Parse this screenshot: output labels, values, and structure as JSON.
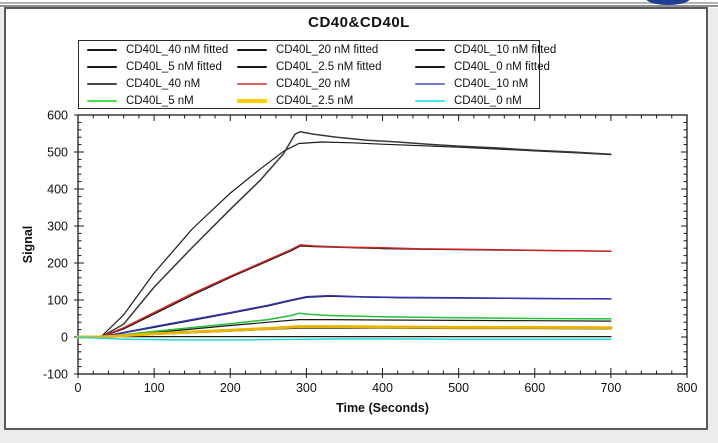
{
  "window": {
    "logo_color": "#1e3f8f"
  },
  "chart_data": {
    "type": "line",
    "title": "CD40&CD40L",
    "xlabel": "Time (Seconds)",
    "ylabel": "Signal",
    "xlim": [
      0,
      800
    ],
    "ylim": [
      -100,
      600
    ],
    "xticks": [
      0,
      100,
      200,
      300,
      400,
      500,
      600,
      700,
      800
    ],
    "yticks": [
      -100,
      0,
      100,
      200,
      300,
      400,
      500,
      600
    ],
    "x_minor_step": 20,
    "y_minor_step": 20,
    "grid": false,
    "legend_position": "top",
    "legend_items": [
      {
        "label": "CD40L_40 nM fitted",
        "color": "#1a1a1a",
        "thick": 2
      },
      {
        "label": "CD40L_20 nM fitted",
        "color": "#1a1a1a",
        "thick": 2
      },
      {
        "label": "CD40L_10 nM fitted",
        "color": "#1a1a1a",
        "thick": 2
      },
      {
        "label": "CD40L_5 nM fitted",
        "color": "#1a1a1a",
        "thick": 2
      },
      {
        "label": "CD40L_2.5 nM fitted",
        "color": "#1a1a1a",
        "thick": 2
      },
      {
        "label": "CD40L_0 nM fitted",
        "color": "#1a1a1a",
        "thick": 2
      },
      {
        "label": "CD40L_40 nM",
        "color": "#474747",
        "thick": 2
      },
      {
        "label": "CD40L_20 nM",
        "color": "#e06060",
        "thick": 2
      },
      {
        "label": "CD40L_10 nM",
        "color": "#7575cc",
        "thick": 2
      },
      {
        "label": "CD40L_5 nM",
        "color": "#44e044",
        "thick": 2
      },
      {
        "label": "CD40L_2.5 nM",
        "color": "#ffcc00",
        "thick": 4
      },
      {
        "label": "CD40L_0 nM",
        "color": "#44e8e8",
        "thick": 2
      }
    ],
    "series": [
      {
        "name": "CD40L_40 nM fitted",
        "color": "#1a1a1a",
        "width": 1.2,
        "points": [
          [
            0,
            0
          ],
          [
            30,
            0
          ],
          [
            60,
            60
          ],
          [
            100,
            173
          ],
          [
            150,
            292
          ],
          [
            200,
            389
          ],
          [
            240,
            455
          ],
          [
            270,
            502
          ],
          [
            290,
            523
          ],
          [
            320,
            527
          ],
          [
            360,
            525
          ],
          [
            400,
            521
          ],
          [
            450,
            517
          ],
          [
            500,
            513
          ],
          [
            550,
            508
          ],
          [
            600,
            503
          ],
          [
            650,
            498
          ],
          [
            700,
            493
          ]
        ]
      },
      {
        "name": "CD40L_20 nM fitted",
        "color": "#1a1a1a",
        "width": 1.2,
        "points": [
          [
            0,
            0
          ],
          [
            30,
            0
          ],
          [
            60,
            22
          ],
          [
            100,
            62
          ],
          [
            150,
            113
          ],
          [
            200,
            161
          ],
          [
            250,
            206
          ],
          [
            280,
            233
          ],
          [
            292,
            246
          ],
          [
            310,
            244
          ],
          [
            350,
            242
          ],
          [
            400,
            239
          ],
          [
            450,
            237
          ],
          [
            500,
            236
          ],
          [
            550,
            235
          ],
          [
            600,
            234
          ],
          [
            650,
            233
          ],
          [
            700,
            232
          ]
        ]
      },
      {
        "name": "CD40L_10 nM fitted",
        "color": "#1a1a1a",
        "width": 1.2,
        "points": [
          [
            0,
            0
          ],
          [
            30,
            0
          ],
          [
            100,
            26
          ],
          [
            150,
            45
          ],
          [
            200,
            64
          ],
          [
            250,
            84
          ],
          [
            280,
            98
          ],
          [
            300,
            107
          ],
          [
            330,
            110
          ],
          [
            370,
            108
          ],
          [
            420,
            106
          ],
          [
            500,
            105
          ],
          [
            600,
            104
          ],
          [
            700,
            103
          ]
        ]
      },
      {
        "name": "CD40L_5 nM fitted",
        "color": "#1a1a1a",
        "width": 1.2,
        "points": [
          [
            0,
            0
          ],
          [
            30,
            0
          ],
          [
            100,
            12
          ],
          [
            200,
            31
          ],
          [
            250,
            40
          ],
          [
            290,
            47
          ],
          [
            330,
            47
          ],
          [
            400,
            46
          ],
          [
            500,
            45
          ],
          [
            600,
            44
          ],
          [
            700,
            43
          ]
        ]
      },
      {
        "name": "CD40L_2.5 nM fitted",
        "color": "#1a1a1a",
        "width": 1.2,
        "points": [
          [
            0,
            0
          ],
          [
            30,
            0
          ],
          [
            100,
            7
          ],
          [
            200,
            16
          ],
          [
            290,
            24
          ],
          [
            400,
            24
          ],
          [
            500,
            23
          ],
          [
            600,
            23
          ],
          [
            700,
            22
          ]
        ]
      },
      {
        "name": "CD40L_0 nM fitted",
        "color": "#1a1a1a",
        "width": 1.2,
        "points": [
          [
            0,
            0
          ],
          [
            30,
            1
          ],
          [
            200,
            1
          ],
          [
            400,
            1
          ],
          [
            700,
            1
          ]
        ]
      },
      {
        "name": "CD40L_40 nM",
        "color": "#383838",
        "width": 1.5,
        "points": [
          [
            0,
            0
          ],
          [
            30,
            0
          ],
          [
            60,
            35
          ],
          [
            100,
            135
          ],
          [
            150,
            242
          ],
          [
            200,
            345
          ],
          [
            240,
            425
          ],
          [
            270,
            495
          ],
          [
            285,
            548
          ],
          [
            292,
            555
          ],
          [
            310,
            548
          ],
          [
            340,
            540
          ],
          [
            380,
            532
          ],
          [
            420,
            527
          ],
          [
            460,
            521
          ],
          [
            500,
            516
          ],
          [
            550,
            511
          ],
          [
            600,
            505
          ],
          [
            650,
            500
          ],
          [
            700,
            494
          ]
        ]
      },
      {
        "name": "CD40L_20 nM",
        "color": "#cc2222",
        "width": 1.5,
        "points": [
          [
            0,
            0
          ],
          [
            30,
            0
          ],
          [
            60,
            25
          ],
          [
            100,
            66
          ],
          [
            150,
            117
          ],
          [
            200,
            164
          ],
          [
            250,
            209
          ],
          [
            280,
            236
          ],
          [
            292,
            249
          ],
          [
            310,
            246
          ],
          [
            350,
            243
          ],
          [
            400,
            241
          ],
          [
            450,
            238
          ],
          [
            500,
            237
          ],
          [
            550,
            236
          ],
          [
            600,
            234
          ],
          [
            650,
            233
          ],
          [
            700,
            232
          ]
        ]
      },
      {
        "name": "CD40L_10 nM",
        "color": "#3333ad",
        "width": 1.5,
        "points": [
          [
            0,
            0
          ],
          [
            30,
            0
          ],
          [
            100,
            28
          ],
          [
            150,
            47
          ],
          [
            200,
            66
          ],
          [
            250,
            86
          ],
          [
            280,
            100
          ],
          [
            300,
            109
          ],
          [
            330,
            112
          ],
          [
            370,
            109
          ],
          [
            420,
            107
          ],
          [
            500,
            106
          ],
          [
            600,
            104
          ],
          [
            700,
            103
          ]
        ]
      },
      {
        "name": "CD40L_5 nM",
        "color": "#22c233",
        "width": 1.5,
        "points": [
          [
            0,
            0
          ],
          [
            30,
            0
          ],
          [
            100,
            15
          ],
          [
            200,
            36
          ],
          [
            250,
            47
          ],
          [
            280,
            58
          ],
          [
            290,
            64
          ],
          [
            305,
            61
          ],
          [
            330,
            58
          ],
          [
            370,
            56
          ],
          [
            420,
            54
          ],
          [
            500,
            52
          ],
          [
            600,
            50
          ],
          [
            700,
            49
          ]
        ]
      },
      {
        "name": "CD40L_2.5 nM",
        "color": "#e8b400",
        "width": 3,
        "points": [
          [
            0,
            0
          ],
          [
            30,
            0
          ],
          [
            100,
            9
          ],
          [
            200,
            18
          ],
          [
            250,
            23
          ],
          [
            290,
            28
          ],
          [
            350,
            28
          ],
          [
            400,
            27
          ],
          [
            500,
            26
          ],
          [
            600,
            26
          ],
          [
            700,
            25
          ]
        ]
      },
      {
        "name": "CD40L_0 nM",
        "color": "#22d6d6",
        "width": 1.5,
        "points": [
          [
            0,
            -1
          ],
          [
            30,
            -3
          ],
          [
            60,
            -6
          ],
          [
            100,
            -7
          ],
          [
            150,
            -8
          ],
          [
            200,
            -8
          ],
          [
            250,
            -7
          ],
          [
            300,
            -6
          ],
          [
            350,
            -5
          ],
          [
            400,
            -5
          ],
          [
            500,
            -6
          ],
          [
            600,
            -6
          ],
          [
            700,
            -6
          ]
        ]
      }
    ]
  }
}
